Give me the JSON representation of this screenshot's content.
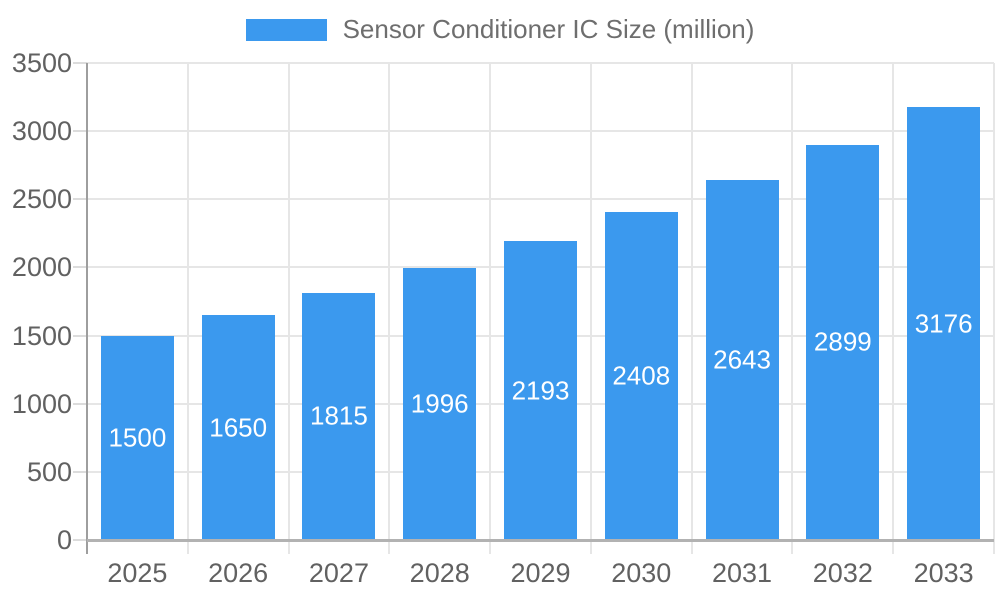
{
  "legend": {
    "label": "Sensor Conditioner IC Size (million)",
    "swatch_color": "#3B99EE"
  },
  "chart_data": {
    "type": "bar",
    "title": "Sensor Conditioner IC Size (million)",
    "categories": [
      "2025",
      "2026",
      "2027",
      "2028",
      "2029",
      "2030",
      "2031",
      "2032",
      "2033"
    ],
    "values": [
      1500,
      1650,
      1815,
      1996,
      2193,
      2408,
      2643,
      2899,
      3176
    ],
    "series": [
      {
        "name": "Sensor Conditioner IC Size (million)",
        "values": [
          1500,
          1650,
          1815,
          1996,
          2193,
          2408,
          2643,
          2899,
          3176
        ]
      }
    ],
    "xlabel": "",
    "ylabel": "",
    "ylim": [
      0,
      3500
    ],
    "ytick_step": 500,
    "yticks": [
      0,
      500,
      1000,
      1500,
      2000,
      2500,
      3000,
      3500
    ],
    "grid": true,
    "legend_position": "top-center",
    "data_label_position": "inside-center",
    "colors": {
      "bar": "#3B99EE",
      "data_label": "#FFFFFF",
      "gridline": "#E6E6E6",
      "tick": "#DCDCDC",
      "y_axis_line": "#9E9E9E",
      "x_axis_line": "#B2B2B2",
      "axis_text": "#616161",
      "legend_text": "#6E6E6E",
      "background": "#FFFFFF"
    }
  }
}
